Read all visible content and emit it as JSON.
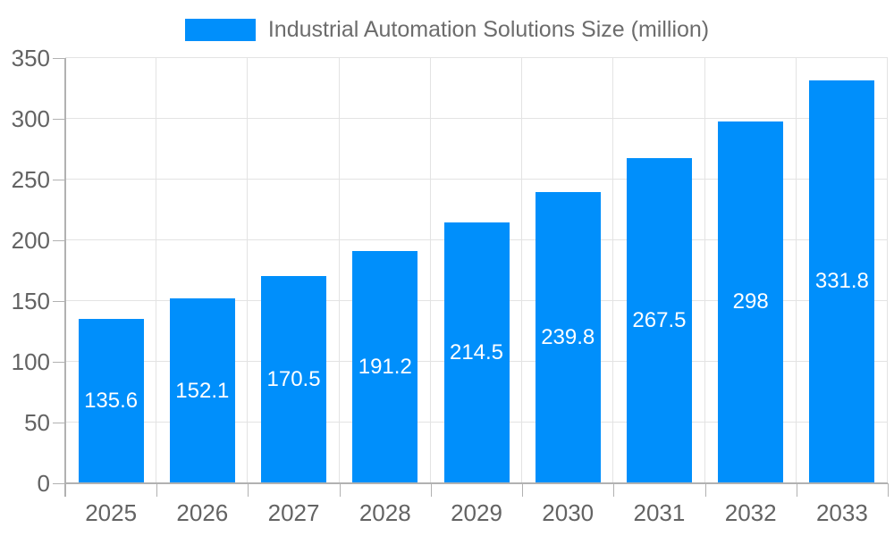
{
  "chart_data": {
    "type": "bar",
    "title": "Industrial Automation Solutions Size (million)",
    "legend": {
      "label": "Industrial Automation Solutions Size (million)",
      "position": "top",
      "marker": "rectangle"
    },
    "categories": [
      "2025",
      "2026",
      "2027",
      "2028",
      "2029",
      "2030",
      "2031",
      "2032",
      "2033"
    ],
    "values": [
      135.6,
      152.1,
      170.5,
      191.2,
      214.5,
      239.8,
      267.5,
      298,
      331.8
    ],
    "value_labels": [
      "135.6",
      "152.1",
      "170.5",
      "191.2",
      "214.5",
      "239.8",
      "267.5",
      "298",
      "331.8"
    ],
    "xlabel": "",
    "ylabel": "",
    "ylim": [
      0,
      350
    ],
    "yticks": [
      "0",
      "50",
      "100",
      "150",
      "200",
      "250",
      "300",
      "350"
    ],
    "grid": true,
    "colors": {
      "bar": "#008FFB",
      "grid": "#e3e3e3",
      "axis": "#b1b1b1",
      "tick_label": "#636363",
      "legend_text": "#6c6c6c",
      "value_text": "#ffffff",
      "background": "#ffffff"
    }
  }
}
